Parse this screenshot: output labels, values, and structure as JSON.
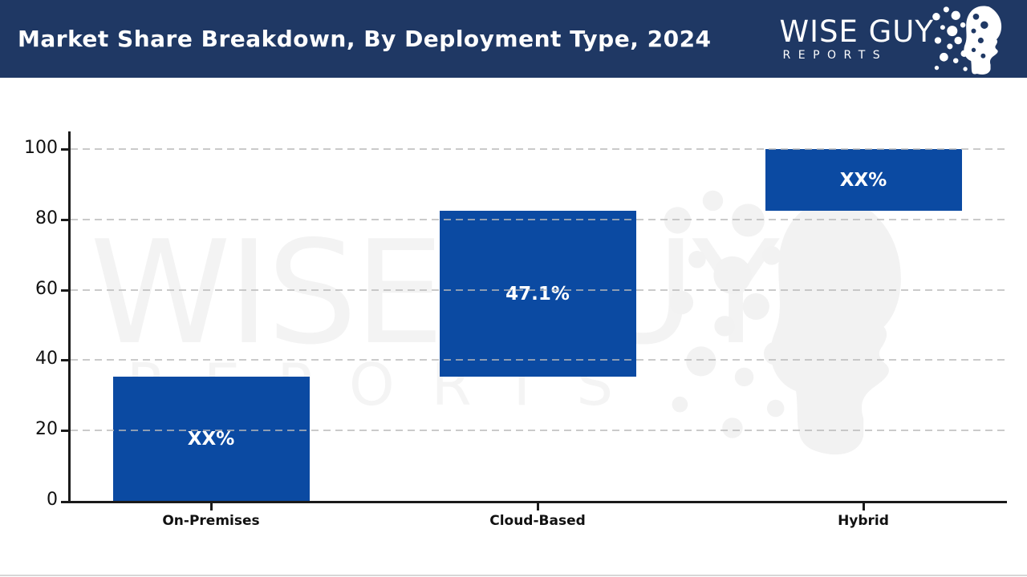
{
  "header": {
    "title": "Market Share Breakdown, By Deployment Type, 2024",
    "background_color": "#1f3864",
    "logo": {
      "line1": "WISE GUY",
      "line2": "REPORTS"
    }
  },
  "watermark": {
    "line1": "WISE GUY",
    "line2": "REPORTS"
  },
  "chart_data": {
    "type": "bar",
    "subtype": "waterfall-floating-bars",
    "title": "Market Share Breakdown, By Deployment Type, 2024",
    "categories": [
      "On-Premises",
      "Cloud-Based",
      "Hybrid"
    ],
    "segments": [
      [
        0,
        35.2
      ],
      [
        35.2,
        82.4
      ],
      [
        82.4,
        100
      ]
    ],
    "bar_labels": [
      "XX%",
      "47.1%",
      "XX%"
    ],
    "xlabel": "",
    "ylabel": "",
    "ylim": [
      0,
      100
    ],
    "yticks": [
      0,
      20,
      40,
      60,
      80,
      100
    ],
    "grid": "horizontal dashed",
    "legend": "none",
    "bar_color": "#0b4aa2",
    "bar_label_color": "#ffffff",
    "axis_color": "#1a1a1a",
    "gridline_color": "#d9d9d9"
  }
}
